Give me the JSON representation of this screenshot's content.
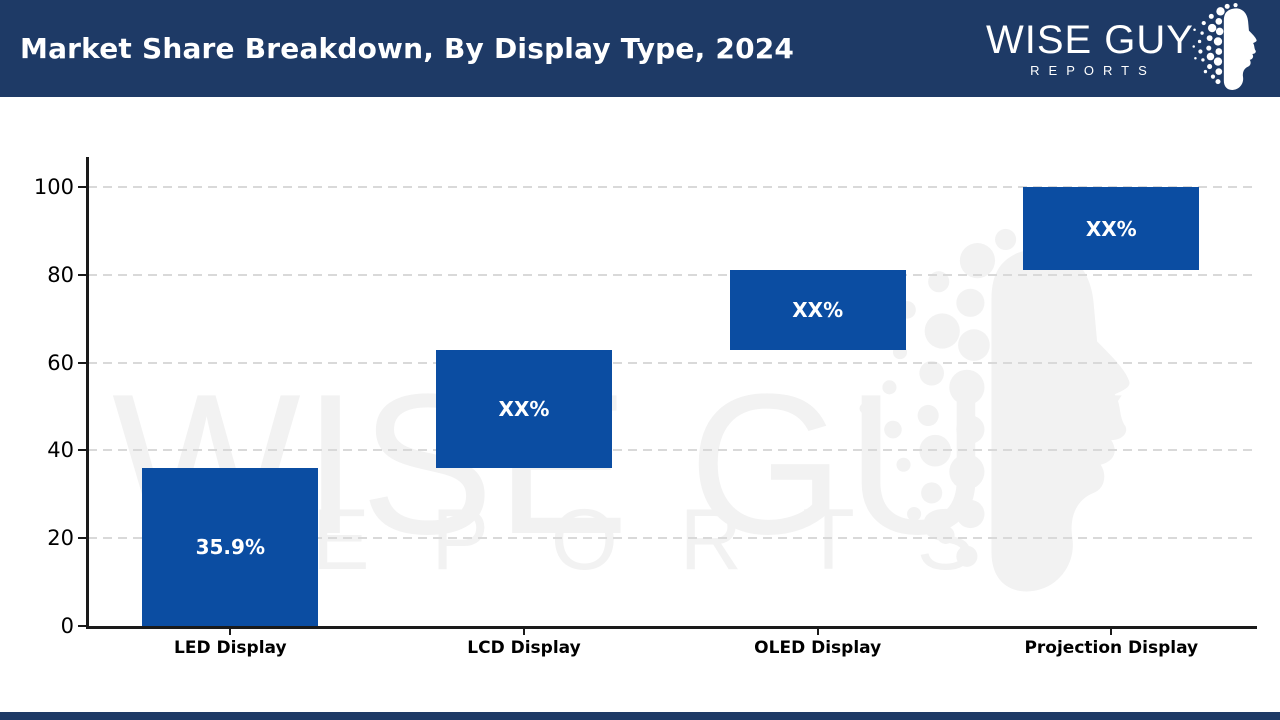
{
  "header": {
    "title": "Market Share Breakdown, By Display Type, 2024",
    "logo": {
      "line1": "WISE GUY",
      "line2": "REPORTS"
    }
  },
  "watermark": {
    "line1": "WISE GUY",
    "line2": "REPORTS"
  },
  "colors": {
    "header_bg": "#1e3a66",
    "footer_bg": "#1e3a66",
    "bar": "#0b4da2",
    "bar_label": "#ffffff",
    "gridline": "#d9d9d9",
    "axis": "#1a1a1a",
    "watermark": "#f2f2f2"
  },
  "chart_data": {
    "type": "bar",
    "subtype": "waterfall",
    "title": "Market Share Breakdown, By Display Type, 2024",
    "xlabel": "",
    "ylabel": "",
    "categories": [
      "LED Display",
      "LCD Display",
      "OLED Display",
      "Projection Display"
    ],
    "segments": [
      {
        "category": "LED Display",
        "start": 0,
        "end": 35.9,
        "label": "35.9%"
      },
      {
        "category": "LCD Display",
        "start": 35.9,
        "end": 62.8,
        "label": "XX%"
      },
      {
        "category": "OLED Display",
        "start": 62.8,
        "end": 81.0,
        "label": "XX%"
      },
      {
        "category": "Projection Display",
        "start": 81.0,
        "end": 100.0,
        "label": "XX%"
      }
    ],
    "yticks": [
      0,
      20,
      40,
      60,
      80,
      100
    ],
    "ylim": [
      0,
      106.8
    ],
    "grid": "horizontal-dashed",
    "legend": "none"
  }
}
